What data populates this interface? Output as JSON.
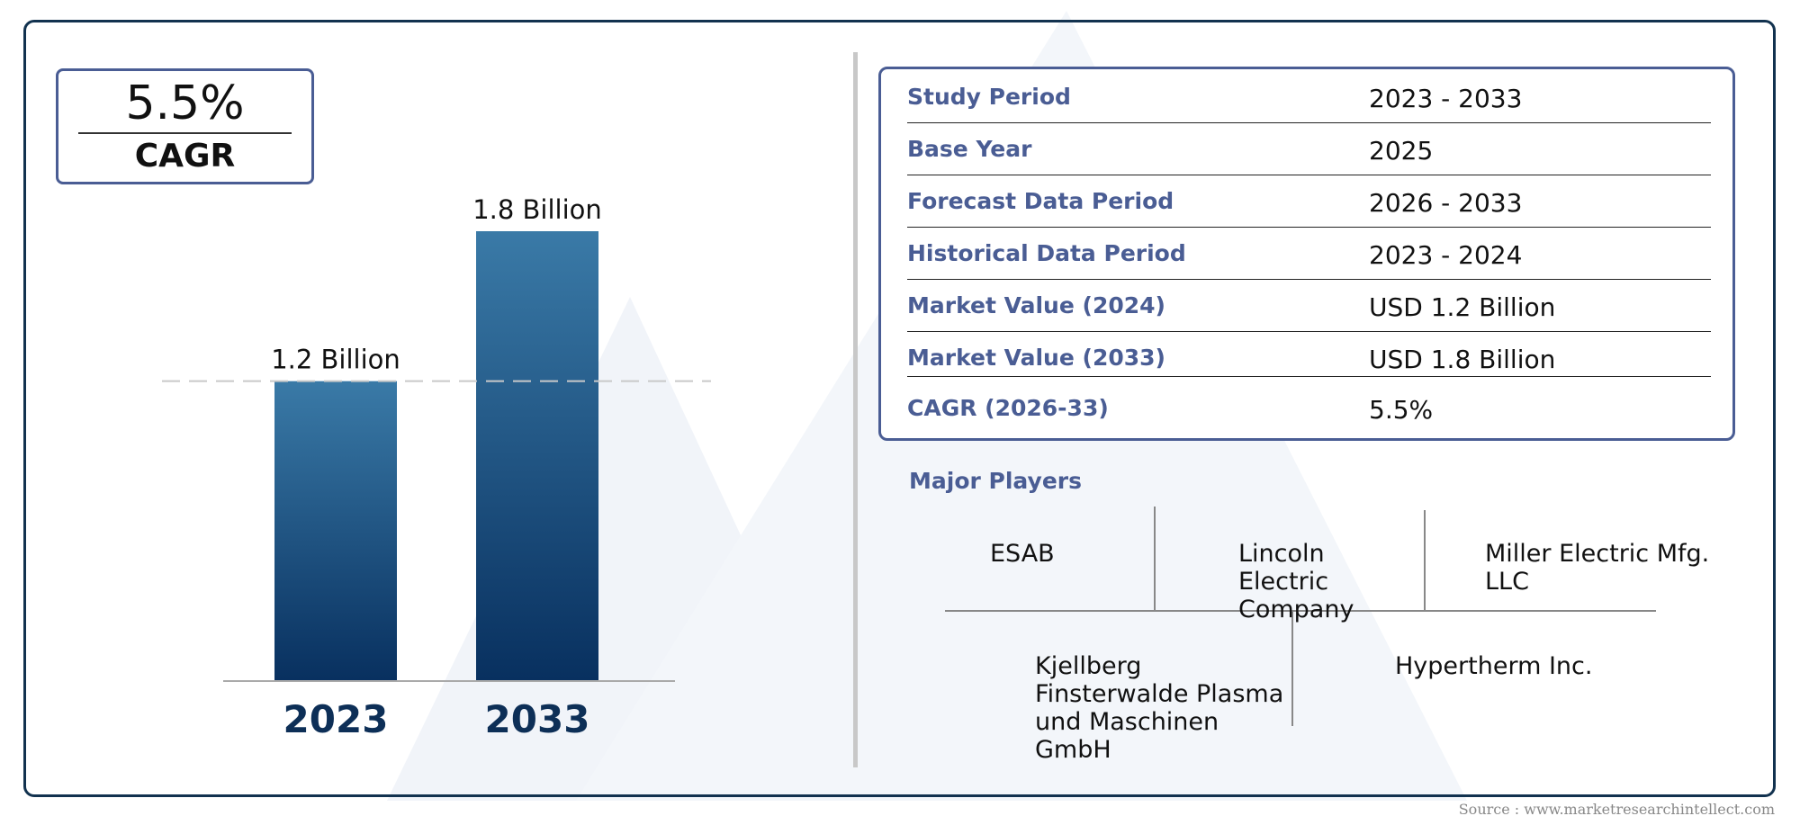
{
  "cagr_badge": {
    "value": "5.5%",
    "label": "CAGR"
  },
  "chart_data": {
    "type": "bar",
    "categories": [
      "2023",
      "2033"
    ],
    "values": [
      1.2,
      1.8
    ],
    "data_labels": [
      "1.2 Billion",
      "1.8 Billion"
    ],
    "unit": "Billion",
    "ylim": [
      0,
      1.8
    ],
    "reference_line": 1.2,
    "title": "",
    "xlabel": "",
    "ylabel": ""
  },
  "info_table": [
    {
      "key": "Study Period",
      "value": "2023 - 2033"
    },
    {
      "key": "Base Year",
      "value": "2025"
    },
    {
      "key": "Forecast Data Period",
      "value": "2026 - 2033"
    },
    {
      "key": "Historical Data Period",
      "value": "2023 - 2024"
    },
    {
      "key": "Market Value (2024)",
      "value": "USD 1.2 Billion"
    },
    {
      "key": "Market Value (2033)",
      "value": "USD 1.8 Billion"
    },
    {
      "key": "CAGR (2026-33)",
      "value": "5.5%"
    }
  ],
  "major_players": {
    "title": "Major Players",
    "players": [
      "ESAB",
      "Lincoln Electric Company",
      "Miller Electric Mfg. LLC",
      "Kjellberg Finsterwalde Plasma und Maschinen GmbH",
      "Hypertherm Inc."
    ]
  },
  "source": "Source : www.marketresearchintellect.com",
  "colors": {
    "frame": "#12324f",
    "accent": "#4a5d94",
    "bar_top": "#3a7aa7",
    "bar_bottom": "#08305f",
    "year_label": "#0d2f57"
  }
}
